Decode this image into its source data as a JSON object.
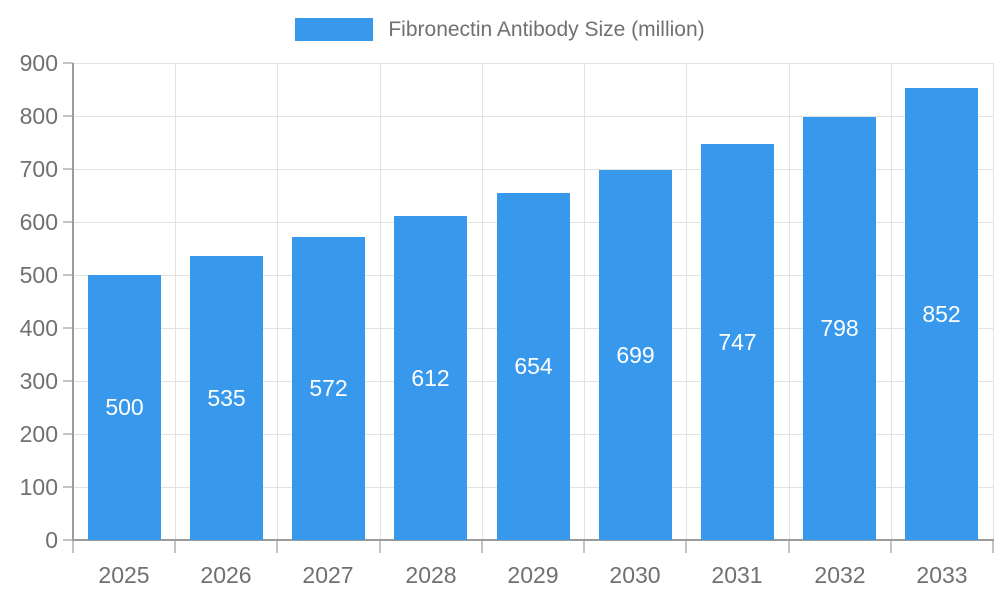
{
  "chart_data": {
    "type": "bar",
    "title": "Fibronectin Antibody Size (million)",
    "legend": {
      "label": "Fibronectin Antibody Size (million)",
      "position": "top-center"
    },
    "categories": [
      "2025",
      "2026",
      "2027",
      "2028",
      "2029",
      "2030",
      "2031",
      "2032",
      "2033"
    ],
    "series": [
      {
        "name": "Fibronectin Antibody Size (million)",
        "values": [
          500,
          535,
          572,
          612,
          654,
          699,
          747,
          798,
          852
        ]
      }
    ],
    "xlabel": "",
    "ylabel": "",
    "ylim": [
      0,
      900
    ],
    "y_tick_labels": [
      "0",
      "100",
      "200",
      "300",
      "400",
      "500",
      "600",
      "700",
      "800",
      "900"
    ],
    "grid": {
      "horizontal": true,
      "vertical": true
    },
    "value_label_position": "inside-center",
    "colors": {
      "bar": "#3899EC",
      "grid": "#E2E2E2",
      "axis": "#9B9B9B",
      "tick": "#C4C4C4",
      "text": "#707070",
      "bar_label": "#FFFFFF",
      "background": "#FFFFFF"
    }
  }
}
